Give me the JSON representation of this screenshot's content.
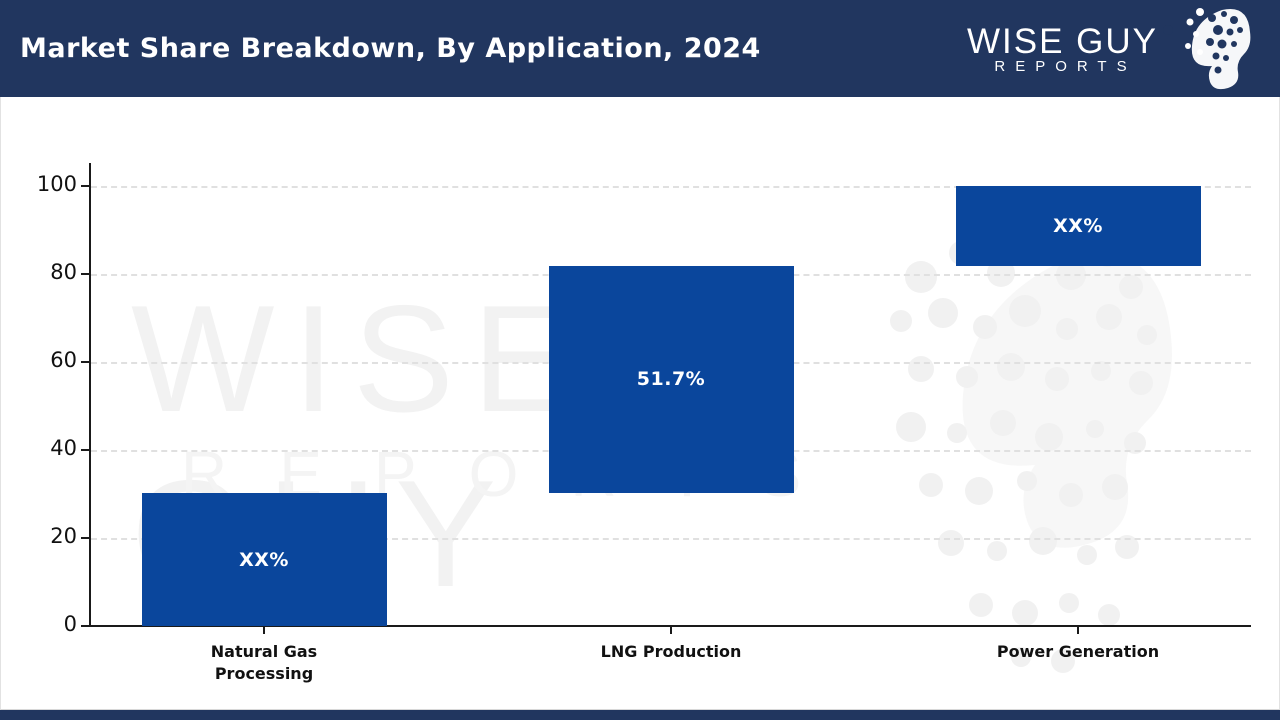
{
  "header": {
    "title": "Market Share Breakdown, By Application, 2024",
    "logo": {
      "line1": "WISE GUY",
      "line2": "REPORTS"
    }
  },
  "watermark": {
    "line1": "WISE GUY",
    "line2": "REPORTS"
  },
  "colors": {
    "header_bg": "#21365f",
    "footer_bg": "#21365f",
    "bar": "#0a469c",
    "bar_label": "#ffffff",
    "gridline": "#e0e0e0",
    "axis": "#1a1a1a",
    "watermark": "#f2f2f2"
  },
  "chart_data": {
    "type": "bar",
    "subtype": "waterfall",
    "title": "Market Share Breakdown, By Application, 2024",
    "xlabel": "",
    "ylabel": "",
    "categories": [
      "Natural Gas Processing",
      "LNG Production",
      "Power Generation"
    ],
    "series": [
      {
        "name": "Market Share (%)",
        "segments": [
          {
            "category": "Natural Gas Processing",
            "start": 0,
            "end": 30.2,
            "value": 30.2,
            "label": "XX%"
          },
          {
            "category": "LNG Production",
            "start": 30.2,
            "end": 81.9,
            "value": 51.7,
            "label": "51.7%"
          },
          {
            "category": "Power Generation",
            "start": 81.9,
            "end": 100,
            "value": 18.1,
            "label": "XX%"
          }
        ]
      }
    ],
    "yticks": [
      0,
      20,
      40,
      60,
      80,
      100
    ],
    "ylim": [
      0,
      105
    ],
    "grid": "horizontal-dashed",
    "legend": "none"
  }
}
